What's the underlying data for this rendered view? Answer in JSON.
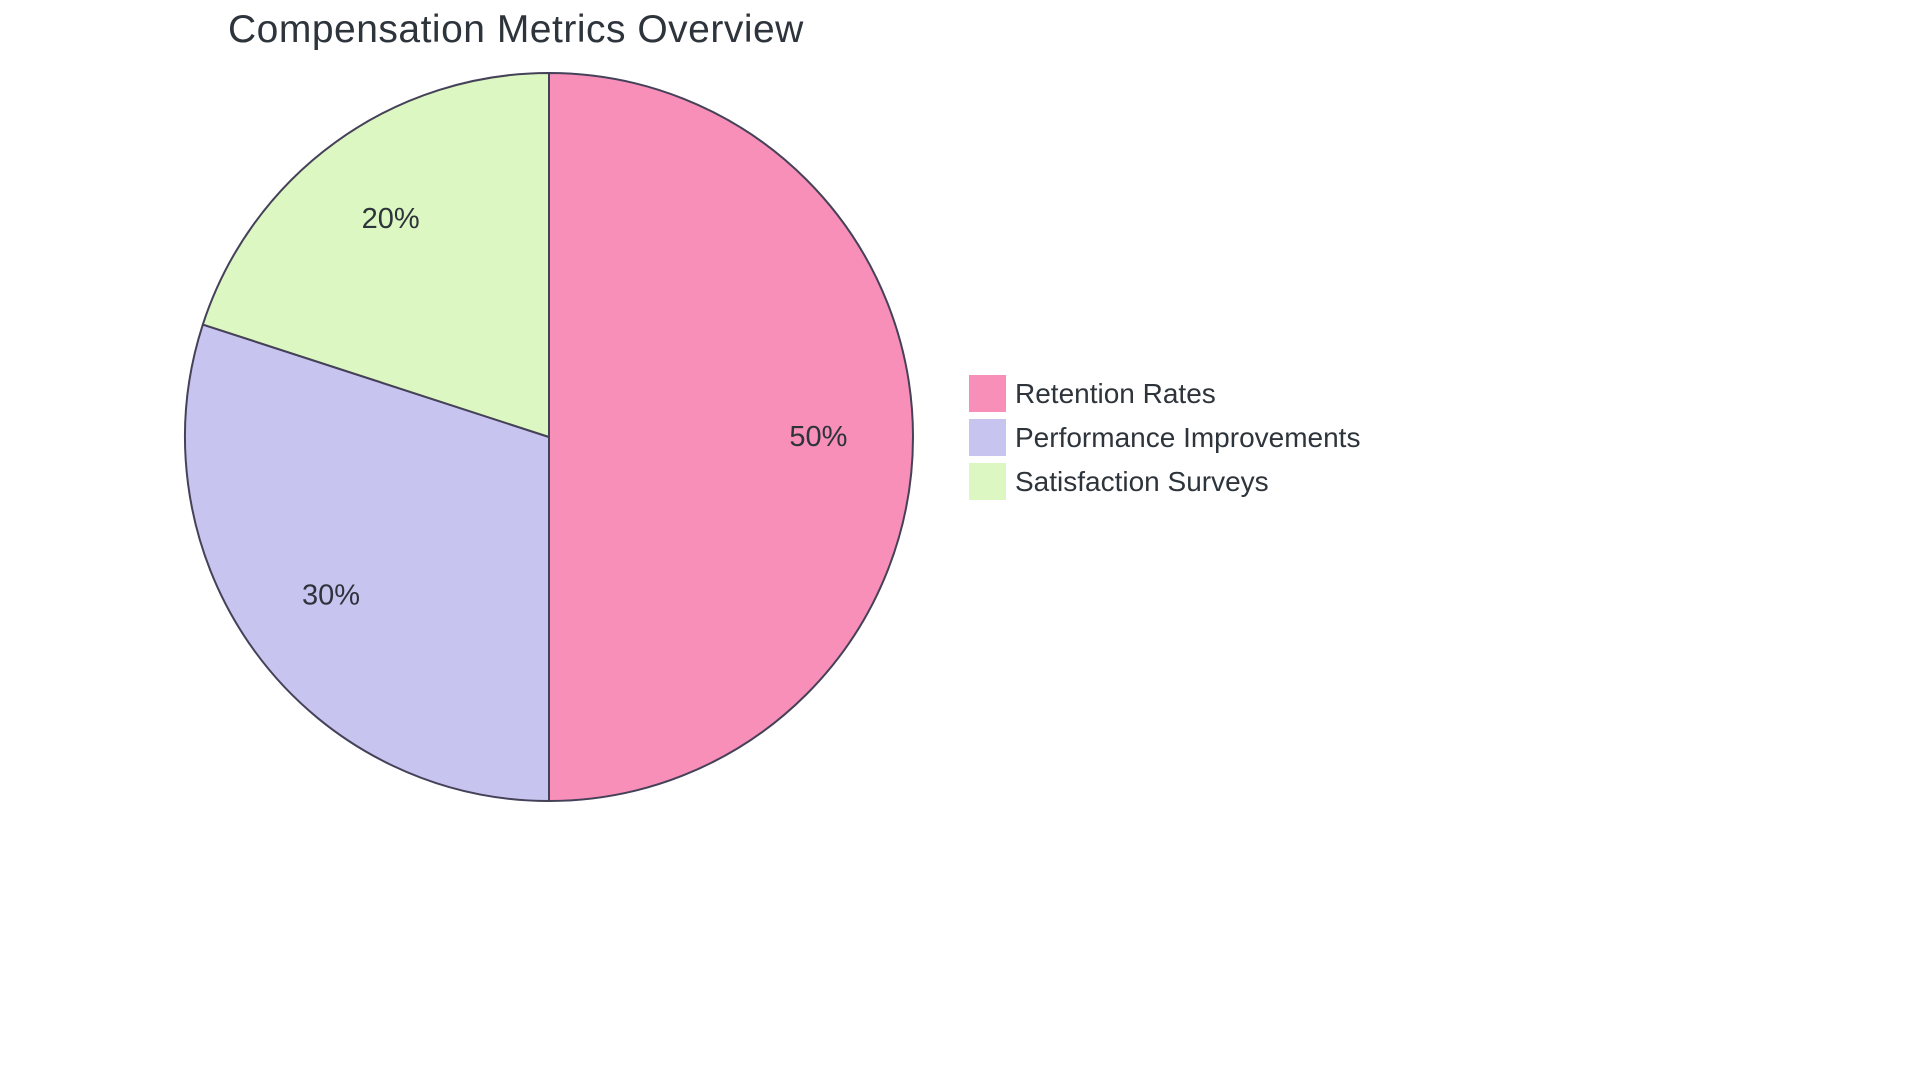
{
  "chart_data": {
    "type": "pie",
    "title": "Compensation Metrics Overview",
    "labels": [
      "Retention Rates",
      "Performance Improvements",
      "Satisfaction Surveys"
    ],
    "values": [
      50,
      30,
      20
    ],
    "value_labels": [
      "50%",
      "30%",
      "20%"
    ],
    "colors": [
      "#F78FB8",
      "#C8C4F0",
      "#DCF7C2"
    ],
    "stroke_color": "#454158",
    "text_color": "#2E343B",
    "background_color": "#FFFFFF",
    "legend_position": "right",
    "start_angle": "top",
    "direction": "clockwise"
  }
}
